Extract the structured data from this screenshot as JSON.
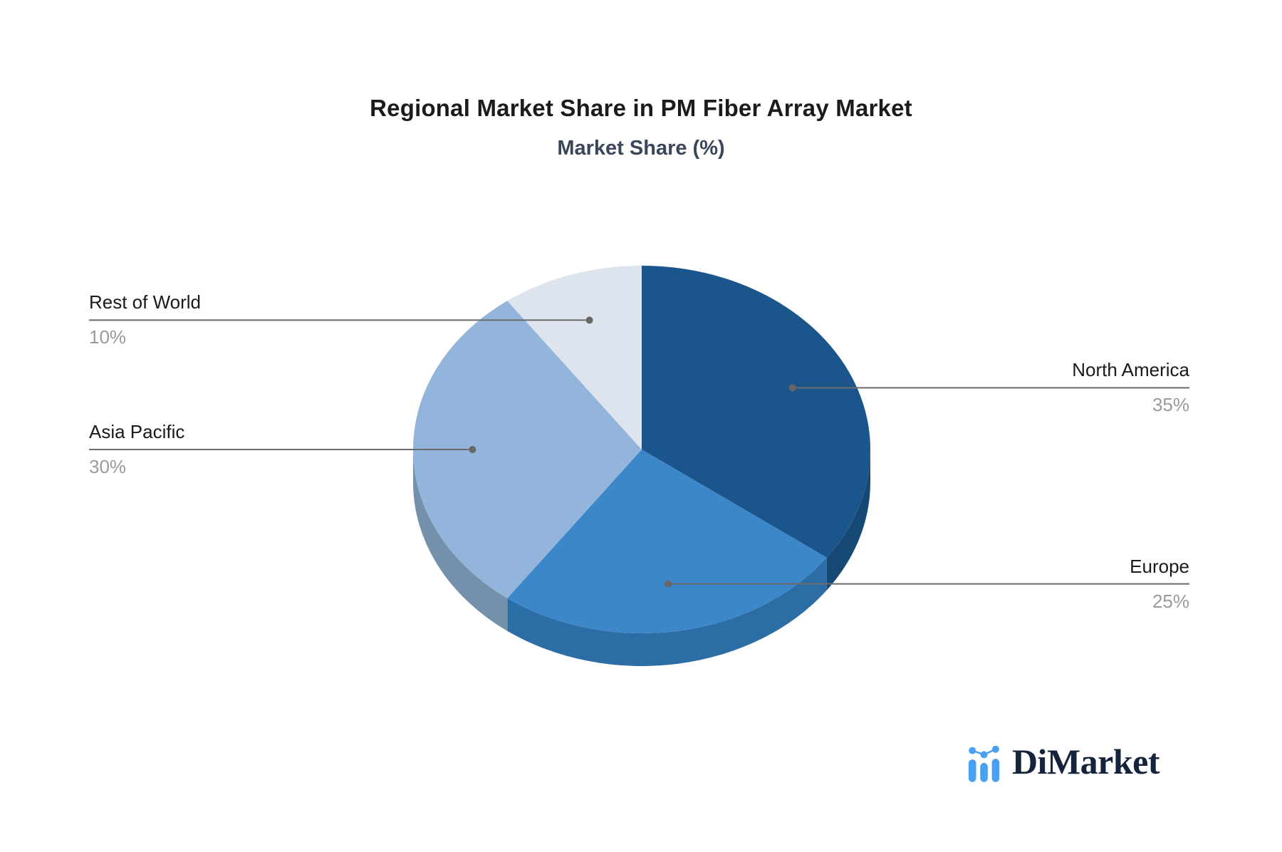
{
  "chart_data": {
    "type": "pie",
    "title": "Regional Market Share in PM Fiber Array Market",
    "subtitle": "Market Share (%)",
    "effect": "3d",
    "start_angle": "12-oclock",
    "direction": "clockwise",
    "legend_position": "none",
    "labeling": "leader-lines",
    "slices": [
      {
        "label": "North America",
        "value": 35,
        "pct_label": "35%",
        "color": "#1A568C",
        "side_color": "#154974"
      },
      {
        "label": "Europe",
        "value": 25,
        "pct_label": "25%",
        "color": "#3C87CA",
        "side_color": "#2D6DA5"
      },
      {
        "label": "Asia Pacific",
        "value": 30,
        "pct_label": "30%",
        "color": "#94B5DB",
        "side_color": "#7590AB"
      },
      {
        "label": "Rest of World",
        "value": 10,
        "pct_label": "10%",
        "color": "#DDE4EE",
        "side_color": "#B7C6D8"
      }
    ],
    "leader_line_color": "#6B6B6B",
    "leader_dot_color": "#676767",
    "label_text_color": "#1A1A1A",
    "pct_text_color": "#9A9A9A",
    "title_color": "#1B1B1B",
    "subtitle_color": "#3A4659"
  },
  "branding": {
    "logo_text": "DiMarket",
    "logo_icon": "bar-line-chart-icon",
    "logo_text_color": "#16233C",
    "logo_accent_color": "#4AA0F0"
  }
}
